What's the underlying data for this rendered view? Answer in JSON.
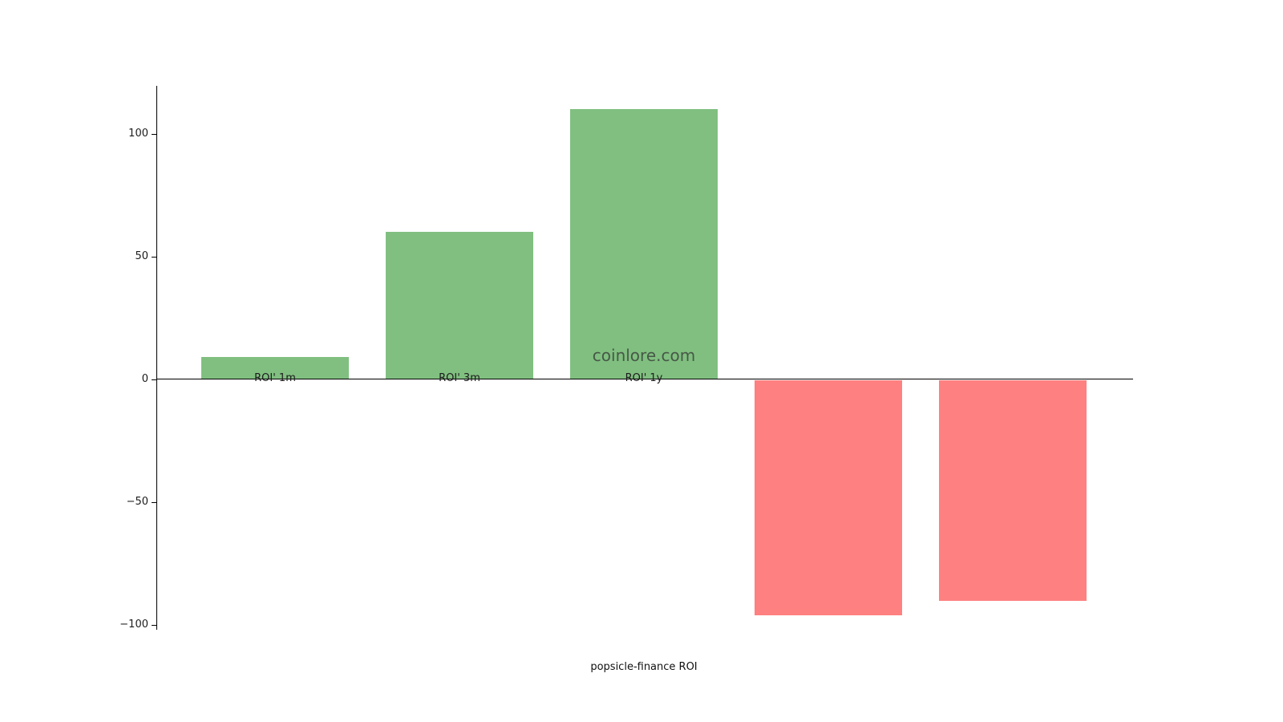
{
  "chart_data": {
    "type": "bar",
    "categories": [
      "ROI' 1m",
      "ROI' 3m",
      "ROI' 1y",
      "",
      ""
    ],
    "values": [
      9,
      60,
      110,
      -96,
      -90
    ],
    "bar_colors": [
      "#80bf80",
      "#80bf80",
      "#80bf80",
      "#ff8080",
      "#ff8080"
    ],
    "positive_color": "#80bf80",
    "negative_color": "#ff8080",
    "title": "popsicle-finance ROI",
    "xlabel": "",
    "ylabel": "",
    "ylim": [
      -105,
      120
    ],
    "yticks": [
      100,
      50,
      0,
      -50,
      -100
    ],
    "ytick_labels": [
      "100",
      "50",
      "0",
      "−50",
      "−100"
    ],
    "grid": false,
    "legend_position": "none",
    "axis_color": "#000000",
    "text_color": "#1c1c1c"
  },
  "watermark": {
    "text": "coinlore.com"
  }
}
